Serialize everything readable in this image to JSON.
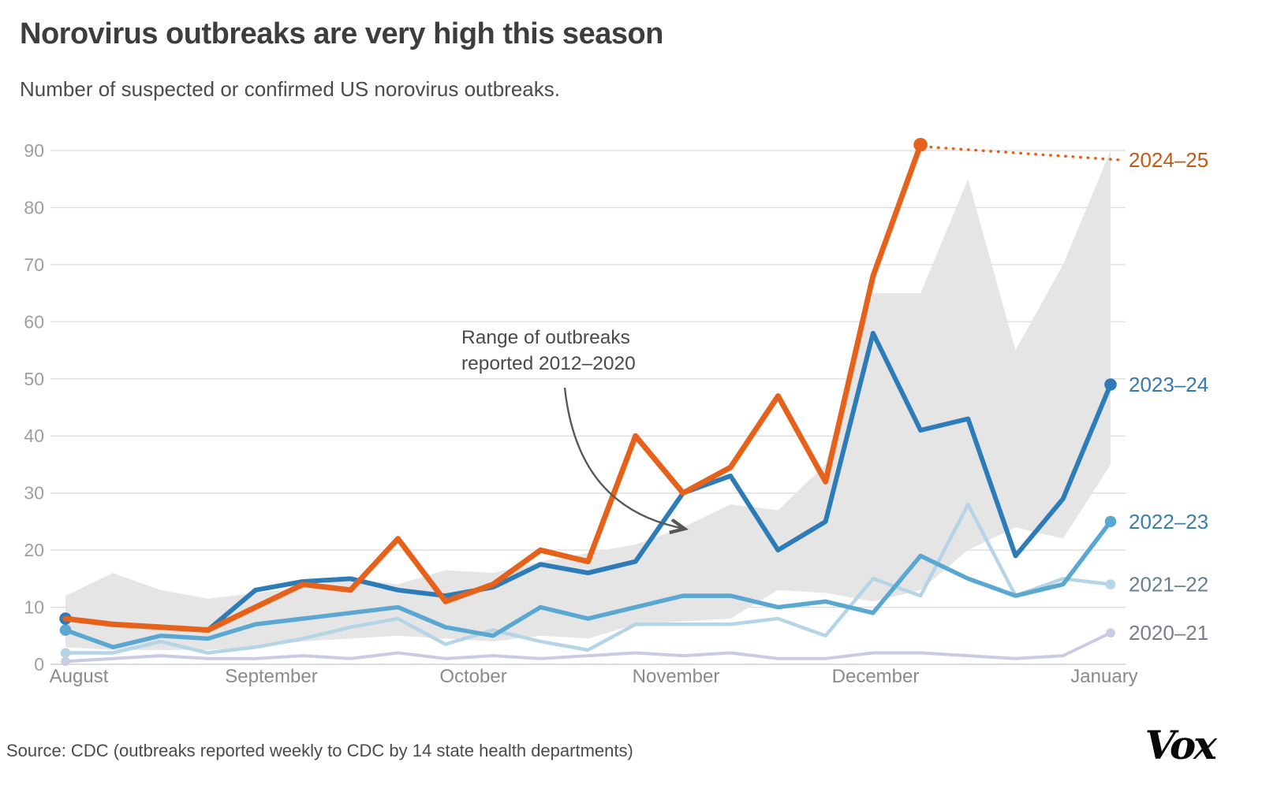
{
  "header": {
    "title": "Norovirus outbreaks are very high this season",
    "subtitle": "Number of suspected or confirmed US norovirus outbreaks."
  },
  "footer": {
    "source": "Source: CDC (outbreaks reported weekly to CDC by 14 state health departments)",
    "brand": "Vox"
  },
  "chart_data": {
    "type": "line",
    "title": "Norovirus outbreaks are very high this season",
    "subtitle": "Number of suspected or confirmed US norovirus outbreaks.",
    "x_unit": "week of season, August through January",
    "x_tick_labels": [
      "August",
      "September",
      "October",
      "November",
      "December",
      "January"
    ],
    "ylim": [
      0,
      95
    ],
    "yticks": [
      0,
      10,
      20,
      30,
      40,
      50,
      60,
      70,
      80,
      90
    ],
    "grid": "horizontal",
    "legend_position": "right-edge-labels",
    "band": {
      "name": "Range of outbreaks reported 2012–2020",
      "color": "#e5e5e6",
      "lower": [
        3,
        2.5,
        2.5,
        2.5,
        3,
        4,
        4.5,
        5,
        4.5,
        4,
        5,
        4.5,
        7,
        7.5,
        8,
        13,
        12.5,
        11,
        13,
        20,
        24,
        22,
        35
      ],
      "upper": [
        12,
        16,
        13,
        11.5,
        12.5,
        13.5,
        15,
        14,
        16.5,
        16,
        18,
        19.5,
        21,
        24,
        28,
        27,
        35,
        65,
        65,
        85,
        55,
        70,
        90
      ]
    },
    "series": [
      {
        "name": "2024–25",
        "color": "#e6621b",
        "label_color": "#c25a16",
        "start_dot": false,
        "dotted_leader": true,
        "values": [
          8,
          7,
          6.5,
          6,
          10,
          14,
          13,
          22,
          11,
          14,
          20,
          18,
          40,
          30,
          34.5,
          47,
          32,
          68,
          91
        ]
      },
      {
        "name": "2023–24",
        "color": "#2e7cb7",
        "label_color": "#3579ad",
        "start_dot": true,
        "dotted_leader": false,
        "values": [
          8,
          7,
          6.5,
          6,
          13,
          14.5,
          15,
          13,
          12,
          13.5,
          17.5,
          16,
          18,
          30,
          33,
          20,
          25,
          58,
          41,
          43,
          19,
          29,
          49
        ]
      },
      {
        "name": "2022–23",
        "color": "#5aa7d2",
        "label_color": "#3e7ea6",
        "start_dot": true,
        "dotted_leader": false,
        "values": [
          6,
          3,
          5,
          4.5,
          7,
          8,
          9,
          10,
          6.5,
          5,
          10,
          8,
          10,
          12,
          12,
          10,
          11,
          9,
          19,
          15,
          12,
          14,
          25
        ]
      },
      {
        "name": "2021–22",
        "color": "#b5d4e6",
        "label_color": "#657f8c",
        "start_dot": true,
        "dotted_leader": false,
        "values": [
          2,
          2,
          4,
          2,
          3,
          4.5,
          6.5,
          8,
          3.5,
          6,
          4,
          2.5,
          7,
          7,
          7,
          8,
          5,
          15,
          12,
          28,
          12,
          15,
          14
        ]
      },
      {
        "name": "2020–21",
        "color": "#c9cae3",
        "label_color": "#7b7b8f",
        "start_dot": true,
        "dotted_leader": false,
        "values": [
          0.5,
          1,
          1.5,
          1,
          1,
          1.5,
          1,
          2,
          1,
          1.5,
          1,
          1.5,
          2,
          1.5,
          2,
          1,
          1,
          2,
          2,
          1.5,
          1,
          1.5,
          5.5
        ]
      }
    ],
    "annotation": {
      "line1": "Range of outbreaks",
      "line2": "reported 2012–2020"
    }
  }
}
